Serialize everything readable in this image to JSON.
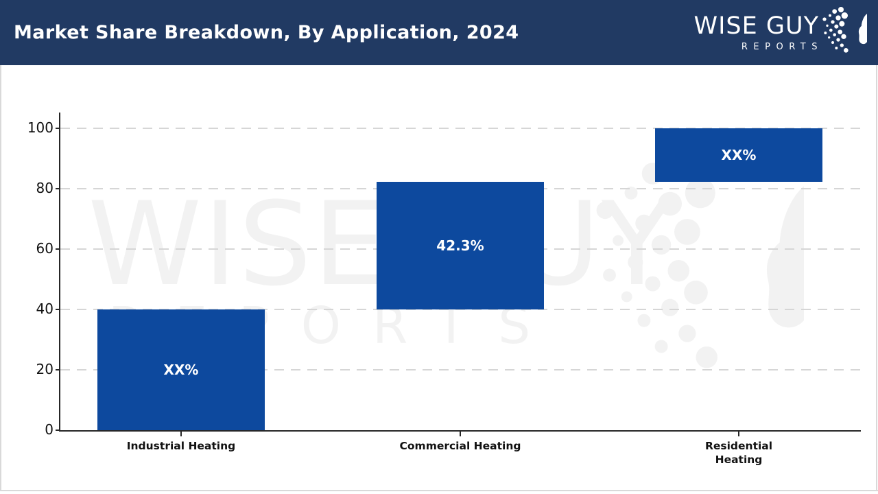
{
  "header": {
    "title": "Market Share Breakdown, By Application, 2024",
    "bg_color": "#213a63",
    "logo": {
      "line1": "WISE GUY",
      "line2": "REPORTS",
      "face_icon": "dotted-head-profile-icon"
    }
  },
  "watermark": {
    "line1": "WISE GUY",
    "line2": "REPORTS",
    "head_icon": "dotted-head-profile-watermark",
    "color": "#f2f2f2"
  },
  "chart_data": {
    "type": "bar",
    "style": "waterfall-stacked-segments",
    "title": "Market Share Breakdown, By Application, 2024",
    "categories": [
      "Industrial Heating",
      "Commercial Heating",
      "Residential\nHeating"
    ],
    "series": [
      {
        "name": "Market Share",
        "segments": [
          {
            "category": "Industrial Heating",
            "start": 0,
            "end": 40,
            "label": "XX%"
          },
          {
            "category": "Commercial Heating",
            "start": 40,
            "end": 82.3,
            "label": "42.3%"
          },
          {
            "category": "Residential Heating",
            "start": 82.3,
            "end": 100,
            "label": "XX%"
          }
        ]
      }
    ],
    "ylim": [
      0,
      100
    ],
    "yticks": [
      0,
      20,
      40,
      60,
      80,
      100
    ],
    "xlabel": "",
    "ylabel": "",
    "grid": "horizontal dashed",
    "legend": "none",
    "bar_color": "#0d499e",
    "grid_color": "#d6d6d6",
    "axis_color": "#262626"
  }
}
